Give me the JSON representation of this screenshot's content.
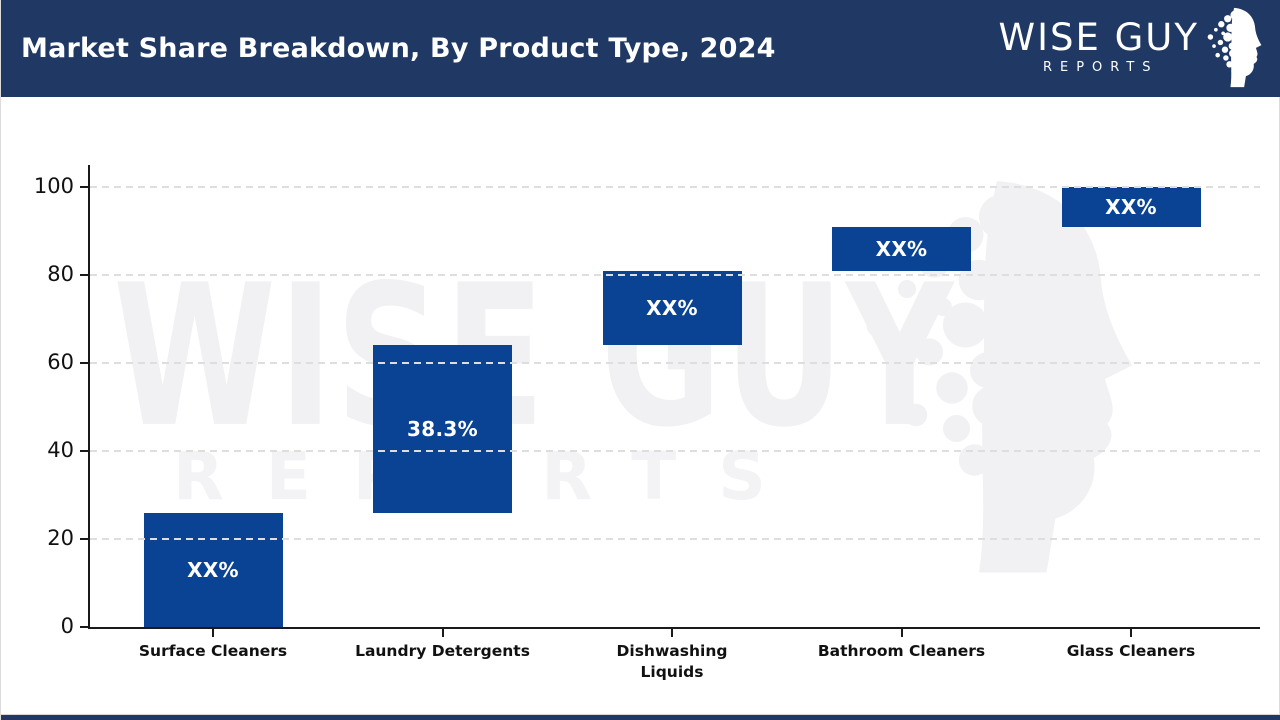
{
  "header": {
    "title": "Market Share Breakdown, By Product Type, 2024",
    "logo": {
      "primary": "WISE GUY",
      "secondary": "REPORTS"
    }
  },
  "watermark": {
    "primary": "WISE GUY",
    "secondary": "REPORTS"
  },
  "chart_data": {
    "type": "bar",
    "subtype": "waterfall",
    "title": "Market Share Breakdown, By Product Type, 2024",
    "categories": [
      "Surface Cleaners",
      "Laundry Detergents",
      "Dishwashing\nLiquids",
      "Bathroom Cleaners",
      "Glass Cleaners"
    ],
    "series": [
      {
        "name": "Market Share %",
        "segments": [
          {
            "category": "Surface Cleaners",
            "start": 0,
            "end": 25.8,
            "label": "XX%"
          },
          {
            "category": "Laundry Detergents",
            "start": 25.8,
            "end": 64.1,
            "label": "38.3%"
          },
          {
            "category": "Dishwashing Liquids",
            "start": 64.1,
            "end": 81,
            "label": "XX%"
          },
          {
            "category": "Bathroom Cleaners",
            "start": 81,
            "end": 91,
            "label": "XX%"
          },
          {
            "category": "Glass Cleaners",
            "start": 91,
            "end": 100,
            "label": "XX%"
          }
        ]
      }
    ],
    "xlabel": "",
    "ylabel": "",
    "ylim": [
      0,
      100
    ],
    "yticks": [
      0,
      20,
      40,
      60,
      80,
      100
    ],
    "grid": "horizontal-dashed",
    "legend": "none",
    "colors": {
      "bar": "#0a4394",
      "bar_label": "#ffffff",
      "header_bg": "#1f3864",
      "gridline": "#dedede",
      "axis": "#1a1a1a",
      "watermark": "#f1f1f4"
    }
  }
}
